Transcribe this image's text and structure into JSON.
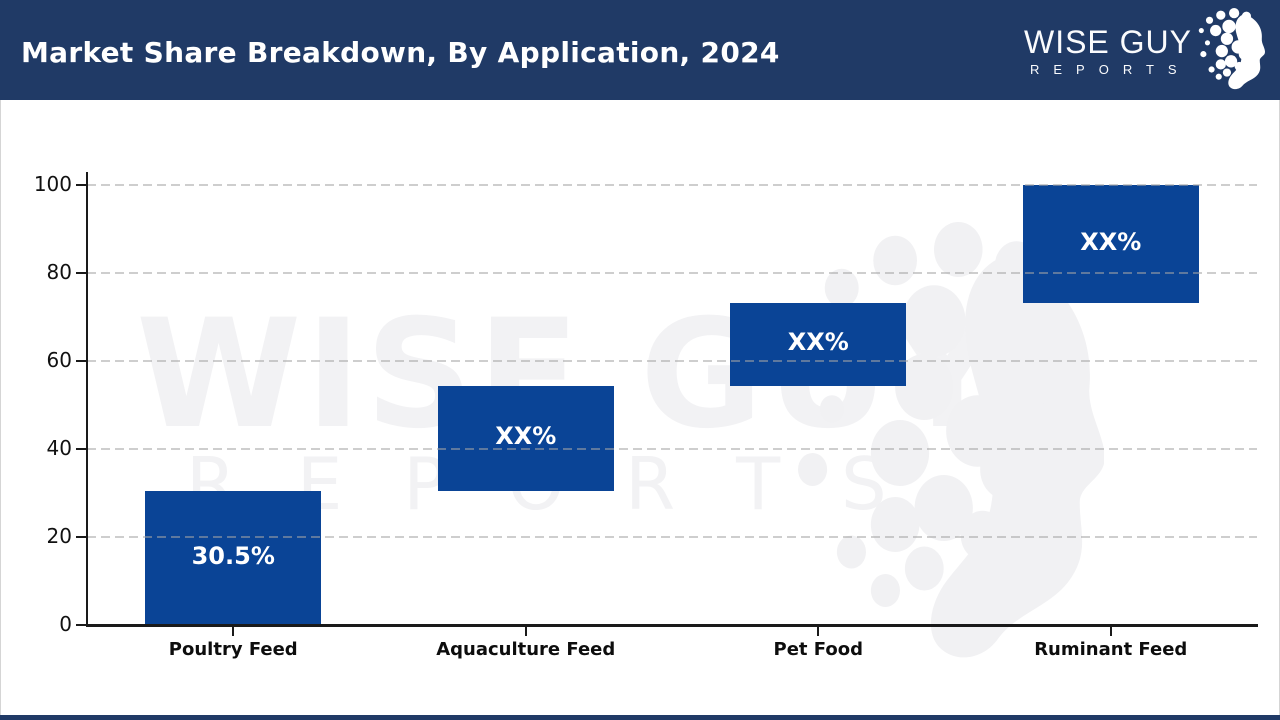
{
  "header": {
    "title": "Market Share Breakdown, By Application, 2024",
    "logo": {
      "name": "WISE GUY",
      "sub": "REPORTS"
    }
  },
  "watermark": {
    "line1": "WISE GUY",
    "line2": "R E P O R T S"
  },
  "chart_data": {
    "type": "bar",
    "subtype": "waterfall",
    "title": "Market Share Breakdown, By Application, 2024",
    "categories": [
      "Poultry Feed",
      "Aquaculture Feed",
      "Pet Food",
      "Ruminant Feed"
    ],
    "segments": [
      {
        "category": "Poultry Feed",
        "start": 0,
        "end": 30.5,
        "label": "30.5%"
      },
      {
        "category": "Aquaculture Feed",
        "start": 30.5,
        "end": 54.4,
        "label": "XX%"
      },
      {
        "category": "Pet Food",
        "start": 54.4,
        "end": 73.2,
        "label": "XX%"
      },
      {
        "category": "Ruminant Feed",
        "start": 73.2,
        "end": 100,
        "label": "XX%"
      }
    ],
    "yticks": [
      0,
      20,
      40,
      60,
      80,
      100
    ],
    "ylim": [
      0,
      105
    ],
    "xlabel": "",
    "ylabel": "",
    "grid": true,
    "gridstyle": "dashed",
    "legend_position": "none",
    "bar_color": "#0a4496",
    "value_label_color": "#ffffff"
  },
  "colors": {
    "header_bg": "#203a66",
    "bar": "#0a4496",
    "axis": "#1a1a1a",
    "grid": "#a5a5a5",
    "watermark": "#f2f2f4",
    "border": "#d5d5d5"
  }
}
